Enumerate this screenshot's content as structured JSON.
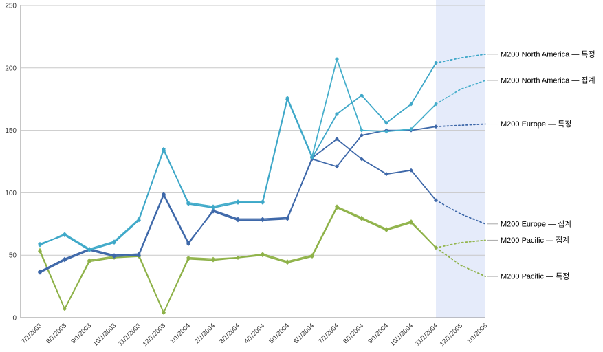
{
  "page": {
    "background": "#FFFFFF"
  },
  "chart_data": {
    "type": "line",
    "title": "",
    "xlabel": "",
    "ylabel": "",
    "ylim": [
      0,
      250
    ],
    "yticks": [
      0,
      50,
      100,
      150,
      200,
      250
    ],
    "grid": true,
    "legend_position": "right-labels-with-leader-lines",
    "x": [
      "7/1/2003",
      "8/1/2003",
      "9/1/2003",
      "10/1/2003",
      "11/1/2003",
      "12/1/2003",
      "1/1/2004",
      "2/1/2004",
      "3/1/2004",
      "4/1/2004",
      "5/1/2004",
      "6/1/2004",
      "7/1/2004",
      "8/1/2004",
      "9/1/2004",
      "10/1/2004",
      "11/1/2004",
      "12/1/2005",
      "1/1/2006"
    ],
    "history_count": 17,
    "forecast_region": {
      "start_category": "11/1/2004",
      "end_category": "1/1/2006",
      "style": "shaded band, series continue as dotted forecast lines"
    },
    "forecast_band_color": "#E5EBFA",
    "axis_color": "#8E8E8E",
    "grid_color": "#C8C8C8",
    "leader_color": "#A8A8A8",
    "tick_label_color": "#333333",
    "label_text_color": "#000000",
    "series": [
      {
        "name": "M200 Pacific — 집계",
        "color": "#94B64E",
        "values": [
          54,
          7,
          46,
          49,
          50,
          4,
          48,
          47,
          48,
          51,
          45,
          50,
          89,
          80,
          71,
          77,
          56,
          60,
          62
        ]
      },
      {
        "name": "M200 Pacific — 특정",
        "color": "#8DB148",
        "values": [
          53,
          7,
          45,
          48,
          49,
          4,
          47,
          46,
          48,
          50,
          44,
          49,
          88,
          79,
          70,
          76,
          56,
          42,
          33
        ]
      },
      {
        "name": "M200 Europe — 집계",
        "color": "#3E68A9",
        "values": [
          37,
          47,
          55,
          50,
          51,
          99,
          60,
          85,
          78,
          78,
          79,
          128,
          143,
          127,
          115,
          118,
          94,
          83,
          75
        ]
      },
      {
        "name": "M200 Europe — 특정",
        "color": "#3E68A9",
        "values": [
          36,
          46,
          54,
          49,
          50,
          98,
          59,
          86,
          79,
          79,
          80,
          127,
          121,
          146,
          150,
          150,
          153,
          154,
          155
        ]
      },
      {
        "name": "M200 North America — 집계",
        "color": "#45AECB",
        "values": [
          58,
          67,
          55,
          61,
          79,
          134,
          92,
          89,
          93,
          93,
          176,
          129,
          207,
          150,
          149,
          151,
          171,
          183,
          190
        ]
      },
      {
        "name": "M200 North America — 특정",
        "color": "#3EA7C8",
        "values": [
          59,
          66,
          54,
          60,
          78,
          135,
          91,
          88,
          92,
          92,
          175,
          128,
          163,
          178,
          156,
          171,
          204,
          208,
          211
        ]
      }
    ]
  }
}
